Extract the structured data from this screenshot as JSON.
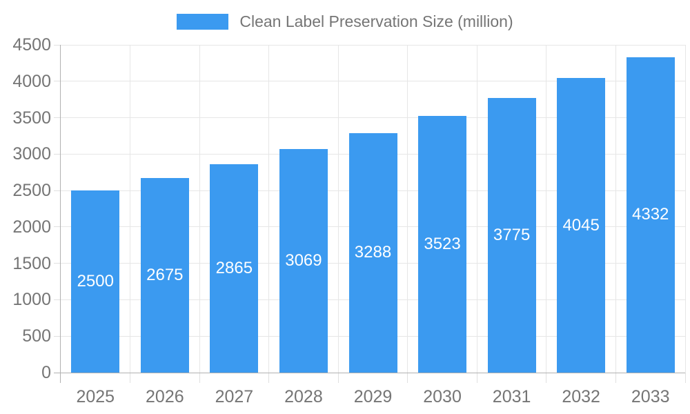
{
  "legend": {
    "label": "Clean Label Preservation Size (million)"
  },
  "chart_data": {
    "type": "bar",
    "title": "Clean Label Preservation Size (million)",
    "series_name": "Clean Label Preservation Size (million)",
    "categories": [
      "2025",
      "2026",
      "2027",
      "2028",
      "2029",
      "2030",
      "2031",
      "2032",
      "2033"
    ],
    "values": [
      2500,
      2675,
      2865,
      3069,
      3288,
      3523,
      3775,
      4045,
      4332
    ],
    "bar_labels": [
      "2500",
      "2675",
      "2865",
      "3069",
      "3288",
      "3523",
      "3775",
      "4045",
      "4332"
    ],
    "ylim": [
      0,
      4500
    ],
    "ytick_interval": 500,
    "yticks": [
      0,
      500,
      1000,
      1500,
      2000,
      2500,
      3000,
      3500,
      4000,
      4500
    ],
    "xlabel": "",
    "ylabel": "",
    "grid": true,
    "legend_position": "top",
    "colors": {
      "bar": "#3b9af0",
      "bar_label_text": "#ffffff",
      "axis_text": "#757575",
      "legend_text": "#757575",
      "gridline": "#e6e6e6",
      "minor_tick": "#e0e0e0",
      "axis_line": "#b0b0b0",
      "background": "#ffffff"
    }
  }
}
